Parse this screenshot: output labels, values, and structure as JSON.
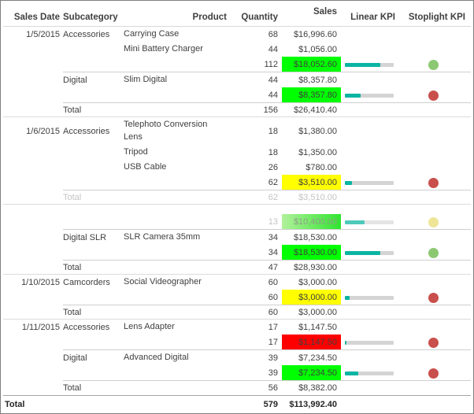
{
  "report": {
    "columns": [
      {
        "key": "sales_date",
        "label": "Sales Date"
      },
      {
        "key": "subcategory",
        "label": "Subcategory"
      },
      {
        "key": "product",
        "label": "Product"
      },
      {
        "key": "quantity",
        "label": "Quantity"
      },
      {
        "key": "sales",
        "label": "Sales"
      },
      {
        "key": "linear_kpi",
        "label": "Linear KPI"
      },
      {
        "key": "stoplight_kpi",
        "label": "Stoplight KPI"
      }
    ],
    "rows": [
      {
        "type": "detail",
        "date": "1/5/2015",
        "subcategory": "Accessories",
        "product": "Carrying Case",
        "quantity": "68",
        "sales": "$16,996.60"
      },
      {
        "type": "detail",
        "product": "Mini Battery Charger",
        "quantity": "44",
        "sales": "$1,056.00"
      },
      {
        "type": "subtotal",
        "quantity": "112",
        "sales": "$18,052.60",
        "highlight": "green",
        "bar_pct": 72,
        "light": "green"
      },
      {
        "type": "detail",
        "subcategory": "Digital",
        "product": "Slim Digital",
        "quantity": "44",
        "sales": "$8,357.80"
      },
      {
        "type": "subtotal",
        "quantity": "44",
        "sales": "$8,357.80",
        "highlight": "green",
        "bar_pct": 33,
        "light": "red"
      },
      {
        "type": "group-total",
        "label": "Total",
        "quantity": "156",
        "sales": "$26,410.40"
      },
      {
        "type": "detail",
        "date": "1/6/2015",
        "subcategory": "Accessories",
        "product": "Telephoto Conversion\nLens",
        "quantity": "18",
        "sales": "$1,380.00"
      },
      {
        "type": "detail",
        "product": "Tripod",
        "quantity": "18",
        "sales": "$1,350.00"
      },
      {
        "type": "detail",
        "product": "USB Cable",
        "quantity": "26",
        "sales": "$780.00"
      },
      {
        "type": "subtotal",
        "quantity": "62",
        "sales": "$3,510.00",
        "highlight": "yellow",
        "bar_pct": 15,
        "light": "red"
      },
      {
        "type": "group-total",
        "label": "Total",
        "quantity": "62",
        "sales": "$3,510.00",
        "faded": true
      },
      {
        "type": "spacer"
      },
      {
        "type": "subtotal",
        "quantity": "13",
        "sales": "$10,400.00",
        "highlight": "green_faded",
        "bar_pct": 40,
        "light": "yellow",
        "faded": true
      },
      {
        "type": "detail",
        "subcategory": "Digital SLR",
        "product": "SLR Camera 35mm",
        "quantity": "34",
        "sales": "$18,530.00"
      },
      {
        "type": "subtotal",
        "quantity": "34",
        "sales": "$18,530.00",
        "highlight": "green",
        "bar_pct": 73,
        "light": "green"
      },
      {
        "type": "group-total",
        "label": "Total",
        "quantity": "47",
        "sales": "$28,930.00"
      },
      {
        "type": "detail",
        "date": "1/10/2015",
        "subcategory": "Camcorders",
        "product": "Social Videographer",
        "quantity": "60",
        "sales": "$3,000.00"
      },
      {
        "type": "subtotal",
        "quantity": "60",
        "sales": "$3,000.00",
        "highlight": "yellow",
        "bar_pct": 9,
        "light": "red"
      },
      {
        "type": "group-total",
        "label": "Total",
        "quantity": "60",
        "sales": "$3,000.00"
      },
      {
        "type": "detail",
        "date": "1/11/2015",
        "subcategory": "Accessories",
        "product": "Lens Adapter",
        "quantity": "17",
        "sales": "$1,147.50"
      },
      {
        "type": "subtotal",
        "quantity": "17",
        "sales": "$1,147.50",
        "highlight": "red",
        "bar_pct": 4,
        "light": "red"
      },
      {
        "type": "detail",
        "subcategory": "Digital",
        "product": "Advanced Digital",
        "quantity": "39",
        "sales": "$7,234.50"
      },
      {
        "type": "subtotal",
        "quantity": "39",
        "sales": "$7,234.50",
        "highlight": "green",
        "bar_pct": 28,
        "light": "red"
      },
      {
        "type": "group-total",
        "label": "Total",
        "quantity": "56",
        "sales": "$8,382.00"
      }
    ],
    "grand_total": {
      "label": "Total",
      "quantity": "579",
      "sales": "$113,992.40"
    },
    "colors": {
      "highlight_green": "#00ff00",
      "highlight_yellow": "#ffff00",
      "highlight_red": "#ff0000",
      "highlight_green_faded_from": "#b2f19b",
      "highlight_green_faded_to": "#2fe52f",
      "kpi_bar_fill": "#0ab5a3",
      "kpi_bar_fill_faded": "#4ecabb",
      "kpi_bar_track": "#d4d4d4",
      "stoplight_green": "#8cc872",
      "stoplight_red": "#c94f4c",
      "stoplight_yellow": "#ece28c"
    }
  }
}
